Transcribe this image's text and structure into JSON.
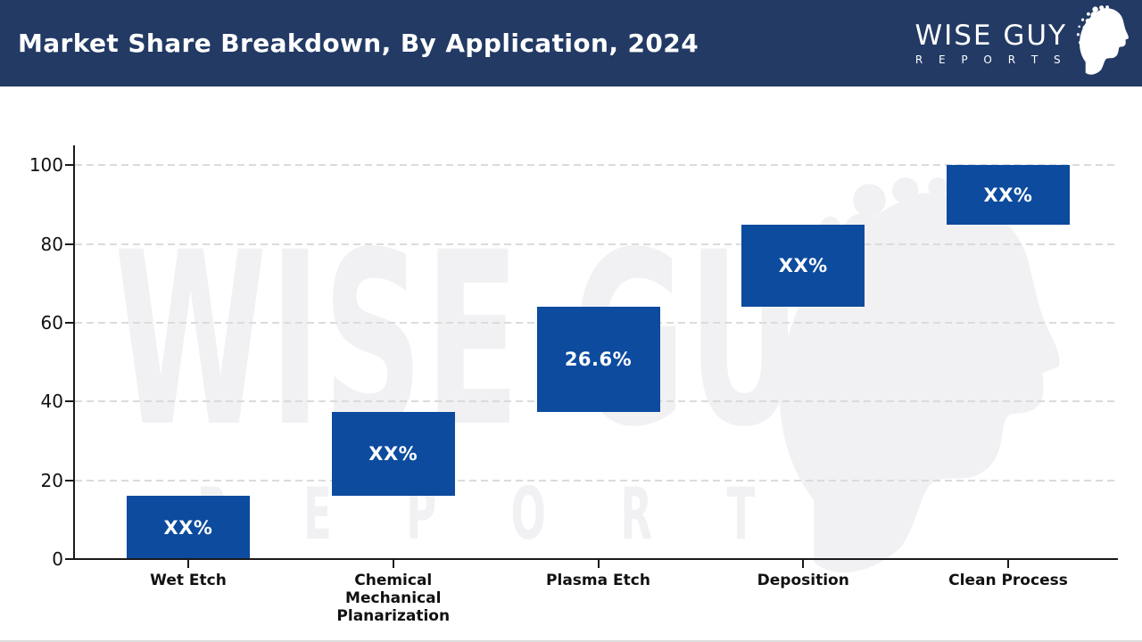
{
  "header": {
    "title": "Market Share Breakdown, By Application, 2024",
    "logo": {
      "line1": "WISE GUY",
      "line2": "R E P O R T S"
    }
  },
  "watermark": {
    "line1": "WISE GUY",
    "line2": "R E P O R T S"
  },
  "colors": {
    "header_bg": "#223A64",
    "bar": "#0C4B9E",
    "gridline": "#DBDBDB",
    "axis": "#1A1A1A",
    "tick_text": "#111111",
    "bar_label_text": "#FFFFFF",
    "watermark": "#F1F1F4"
  },
  "chart_data": {
    "type": "bar",
    "subtype": "waterfall",
    "title": "Market Share Breakdown, By Application, 2024",
    "categories": [
      "Wet Etch",
      "Chemical Mechanical Planarization",
      "Plasma Etch",
      "Deposition",
      "Clean Process"
    ],
    "segments": [
      {
        "category": "Wet Etch",
        "start": 0,
        "end": 16,
        "value_pct": 16,
        "label": "XX%"
      },
      {
        "category": "Chemical Mechanical Planarization",
        "start": 16,
        "end": 37.4,
        "value_pct": 21.4,
        "label": "XX%"
      },
      {
        "category": "Plasma Etch",
        "start": 37.4,
        "end": 64,
        "value_pct": 26.6,
        "label": "26.6%"
      },
      {
        "category": "Deposition",
        "start": 64,
        "end": 85,
        "value_pct": 21,
        "label": "XX%"
      },
      {
        "category": "Clean Process",
        "start": 85,
        "end": 100,
        "value_pct": 15,
        "label": "XX%"
      }
    ],
    "y_ticks": [
      0,
      20,
      40,
      60,
      80,
      100
    ],
    "ylim": [
      0,
      100
    ],
    "xlabel": "",
    "ylabel": "",
    "grid": "horizontal-dashed",
    "legend": "none",
    "bar_color": "#0C4B9E"
  }
}
